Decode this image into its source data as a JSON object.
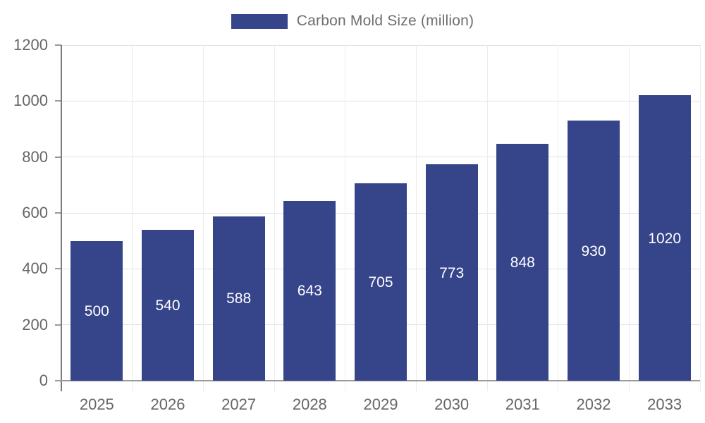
{
  "chart_data": {
    "type": "bar",
    "title": "Carbon Mold Size (million)",
    "legend": {
      "label": "Carbon Mold Size (million)",
      "position": "top"
    },
    "categories": [
      "2025",
      "2026",
      "2027",
      "2028",
      "2029",
      "2030",
      "2031",
      "2032",
      "2033"
    ],
    "values": [
      500,
      540,
      588,
      643,
      705,
      773,
      848,
      930,
      1020
    ],
    "series": [
      {
        "name": "Carbon Mold Size (million)",
        "values": [
          500,
          540,
          588,
          643,
          705,
          773,
          848,
          930,
          1020
        ]
      }
    ],
    "xlabel": "",
    "ylabel": "",
    "yticks": [
      0,
      200,
      400,
      600,
      800,
      1000,
      1200
    ],
    "ylim": [
      0,
      1200
    ],
    "grid": true,
    "value_labels_visible": true
  },
  "colors": {
    "bar": "#36458a",
    "grid_horizontal": "#e2e2e2",
    "grid_vertical": "#ececec",
    "axis_y": "#7b7b7b",
    "axis_x": "#9a9a9a",
    "tick": "#999999",
    "axis_label": "#666666",
    "legend_text": "#6e6e6e",
    "value_label": "#ffffff"
  }
}
